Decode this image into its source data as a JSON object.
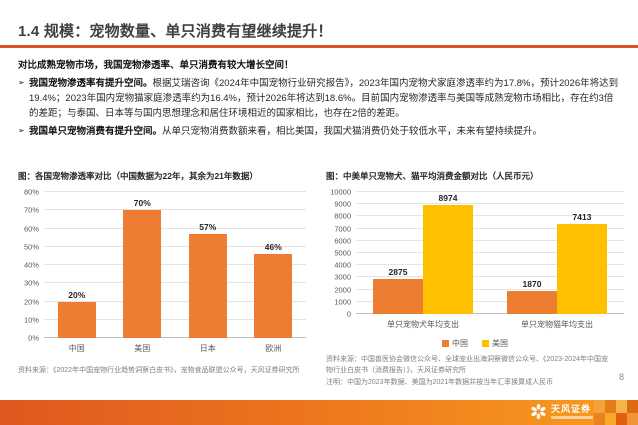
{
  "header": {
    "title": "1.4 规模：宠物数量、单只消费有望继续提升！"
  },
  "body": {
    "headline": "对比成熟宠物市场，我国宠物渗透率、单只消费有较大增长空间！",
    "bullets": [
      {
        "marker": "➢",
        "lead": "我国宠物渗透率有提升空间。",
        "text": "根据艾瑞咨询《2024年中国宠物行业研究报告》，2023年国内宠物犬家庭渗透率约为17.8%，预计2026年将达到19.4%；2023年国内宠物猫家庭渗透率约为16.4%，预计2026年将达到18.6%。目前国内宠物渗透率与美国等成熟宠物市场相比，存在约3倍的差距；与泰国、日本等与国内思想理念和居住环境相近的国家相比，也存在2倍的差距。"
      },
      {
        "marker": "➢",
        "lead": "我国单只宠物消费有提升空间。",
        "text": "从单只宠物消费数额来看，相比美国，我国犬猫消费仍处于较低水平，未来有望持续提升。"
      }
    ]
  },
  "chart_data": [
    {
      "type": "bar",
      "title": "图：各国宠物渗透率对比（中国数据为22年，其余为21年数据）",
      "categories": [
        "中国",
        "美国",
        "日本",
        "欧洲"
      ],
      "values": [
        20,
        70,
        57,
        46
      ],
      "unit": "%",
      "ylim": [
        0,
        80
      ],
      "ytick_step": 10,
      "bar_color": "#ED7D31",
      "grid": true,
      "source": "资料来源：《2022年中国宠物行业趋势洞察白皮书》，宠物食品联盟公众号，天风证券研究所"
    },
    {
      "type": "bar",
      "title": "图：中美单只宠物犬、猫平均消费金额对比（人民币元）",
      "categories": [
        "单只宠物犬年均支出",
        "单只宠物猫年均支出"
      ],
      "series": [
        {
          "name": "中国",
          "color": "#ED7D31",
          "values": [
            2875,
            1870
          ]
        },
        {
          "name": "美国",
          "color": "#FFC000",
          "values": [
            8974,
            7413
          ]
        }
      ],
      "ylim": [
        0,
        10000
      ],
      "ytick_step": 1000,
      "grid": true,
      "legend_position": "bottom",
      "source": "资料来源：中国兽医协会微信公众号、全球宠业出海洞察微信公众号、《2023-2024年中国宠物行业白皮书（消费报告）》，天风证券研究所",
      "note": "注明：中国为2023年数据、美国为2021年数据并按当年汇率换算成人民币"
    }
  ],
  "footer": {
    "page_number": "8",
    "logo_text": "天风证券"
  },
  "colors": {
    "accent_orange": "#DE5323",
    "bar_orange": "#ED7D31",
    "bar_yellow": "#FFC000"
  }
}
